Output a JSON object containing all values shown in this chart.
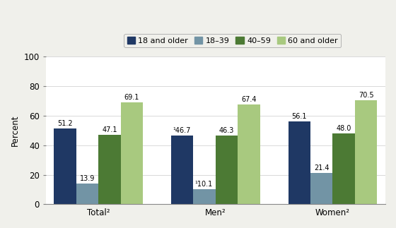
{
  "groups": [
    "Total²",
    "Men²",
    "Women²"
  ],
  "series": [
    {
      "label": "18 and older",
      "color": "#1f3864",
      "values": [
        51.2,
        46.7,
        56.1
      ],
      "labels": [
        "51.2",
        "46.7",
        "56.1"
      ],
      "has_footnote1": [
        false,
        true,
        false
      ]
    },
    {
      "label": "18–39",
      "color": "#7294a5",
      "values": [
        13.9,
        10.1,
        21.4
      ],
      "labels": [
        "13.9",
        "10.1",
        "21.4"
      ],
      "has_footnote1": [
        false,
        true,
        false
      ]
    },
    {
      "label": "40–59",
      "color": "#4c7a34",
      "values": [
        47.1,
        46.3,
        48.0
      ],
      "labels": [
        "47.1",
        "46.3",
        "48.0"
      ],
      "has_footnote1": [
        false,
        false,
        false
      ]
    },
    {
      "label": "60 and older",
      "color": "#a8c97f",
      "values": [
        69.1,
        67.4,
        70.5
      ],
      "labels": [
        "69.1",
        "67.4",
        "70.5"
      ],
      "has_footnote1": [
        false,
        false,
        false
      ]
    }
  ],
  "ylabel": "Percent",
  "ylim": [
    0,
    100
  ],
  "yticks": [
    0,
    20,
    40,
    60,
    80,
    100
  ],
  "bar_width": 0.19,
  "background_color": "#f0f0eb",
  "plot_background": "#ffffff",
  "label_fontsize": 7.0,
  "axis_fontsize": 8.5,
  "legend_fontsize": 8.0,
  "tick_fontsize": 8.5
}
